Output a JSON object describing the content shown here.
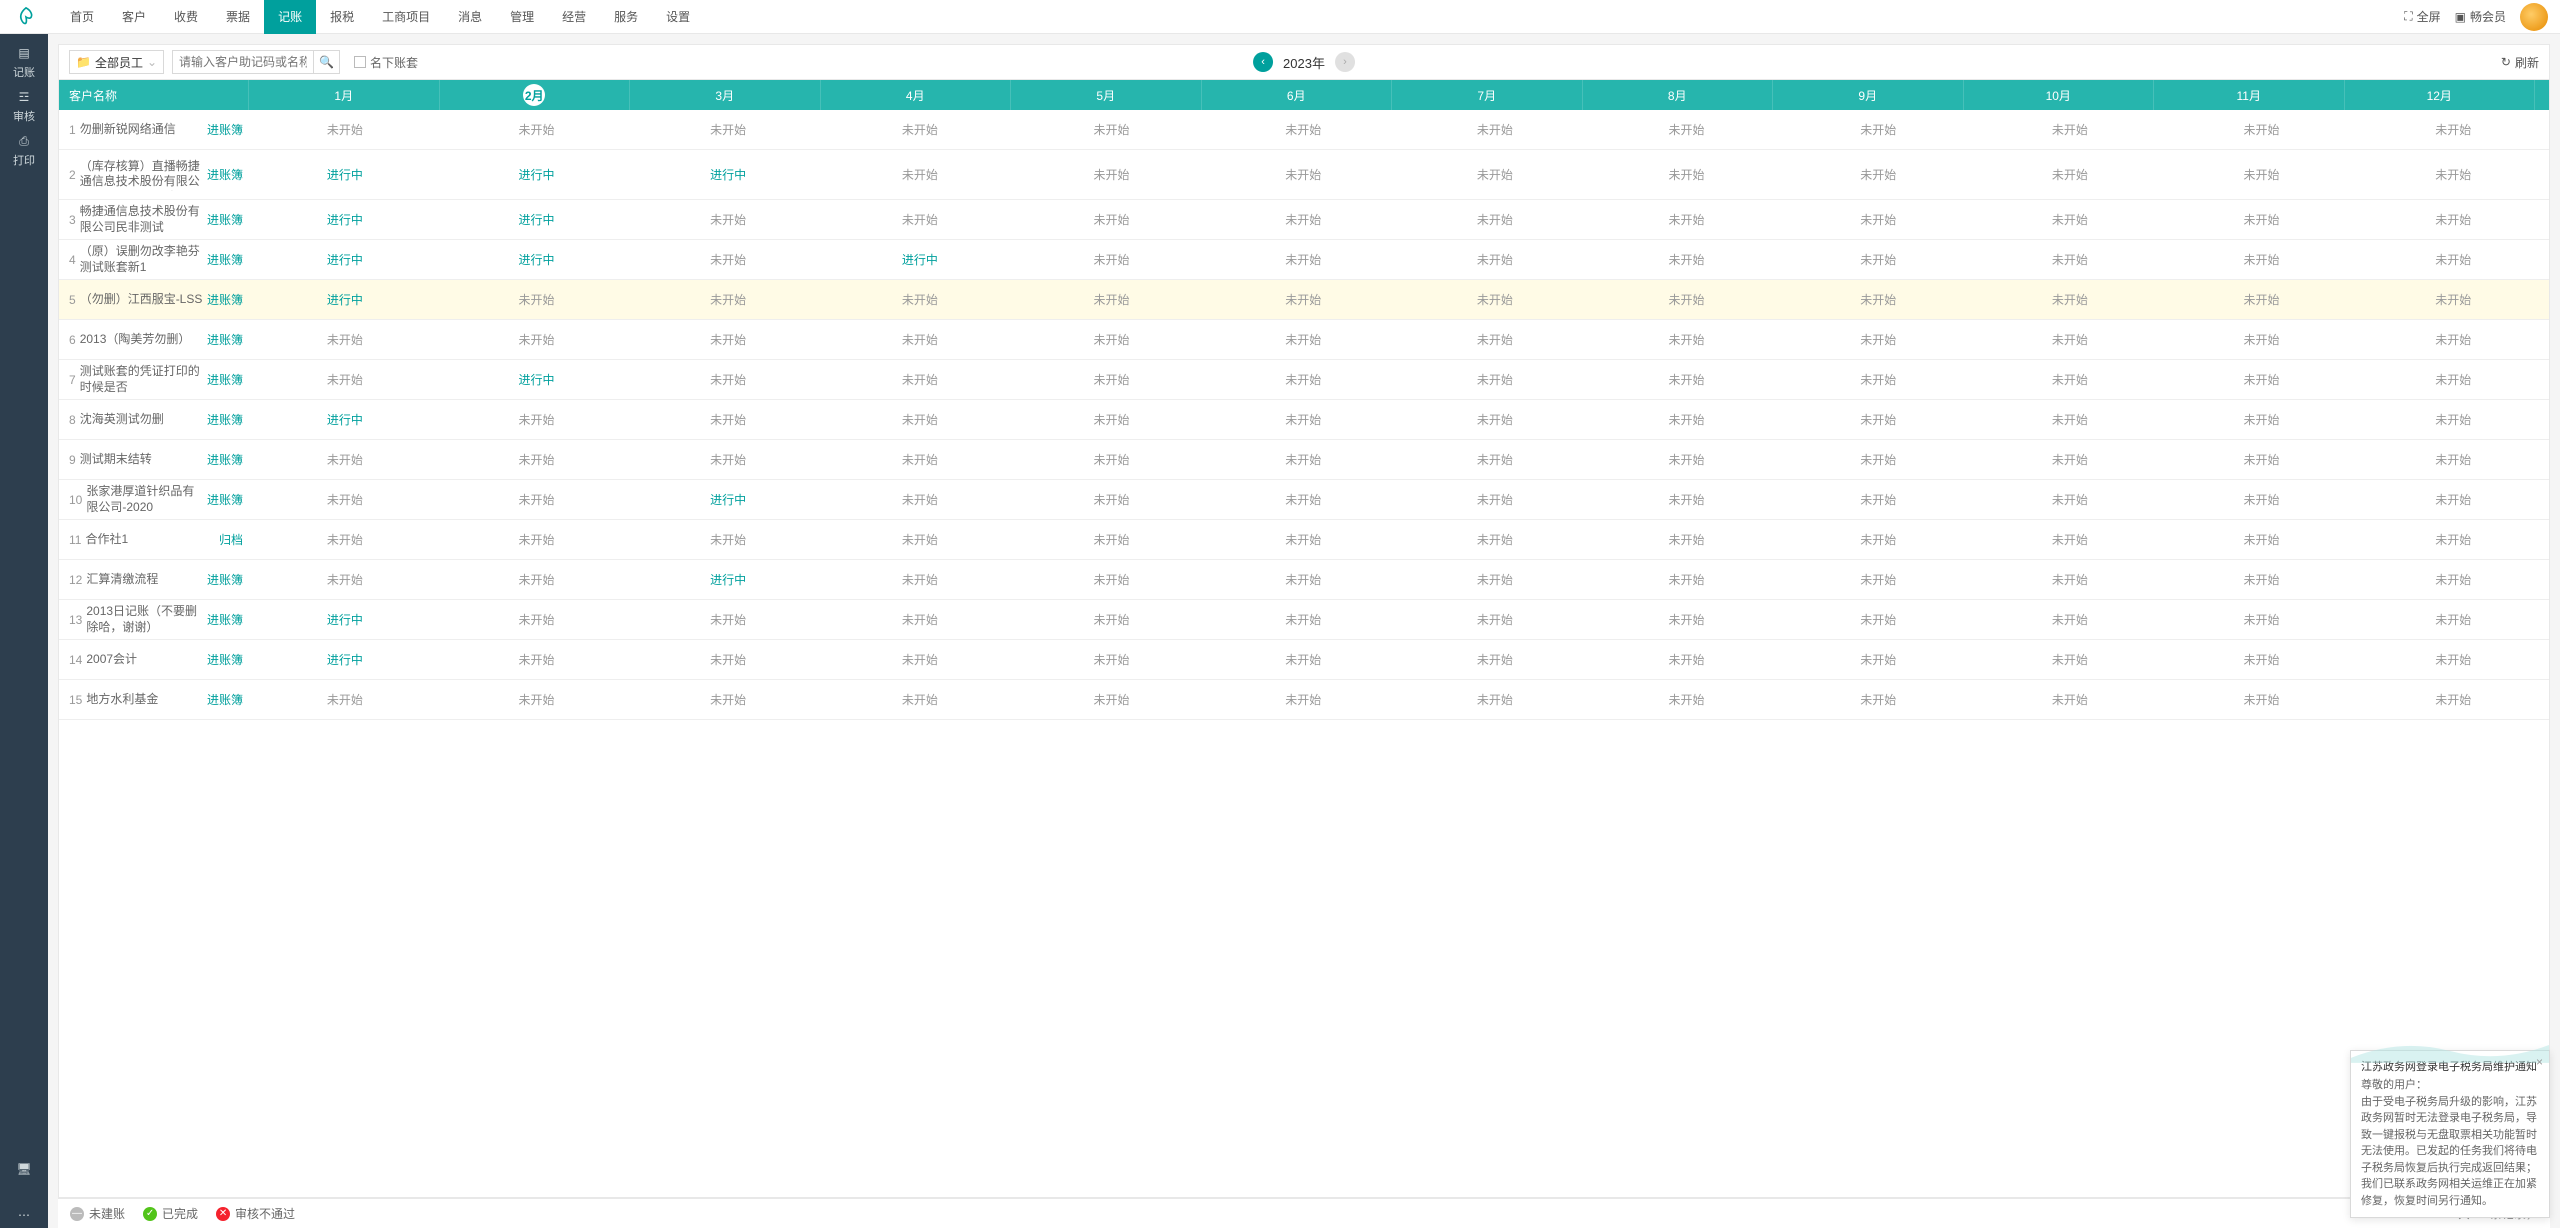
{
  "topnav": {
    "items": [
      "首页",
      "客户",
      "收费",
      "票据",
      "记账",
      "报税",
      "工商项目",
      "消息",
      "管理",
      "经营",
      "服务",
      "设置"
    ],
    "active_index": 4,
    "fullscreen": "全屏",
    "member": "畅会员"
  },
  "sidebar": {
    "items": [
      {
        "icon": "ledger",
        "label": "记账"
      },
      {
        "icon": "audit",
        "label": "审核"
      },
      {
        "icon": "print",
        "label": "打印"
      }
    ]
  },
  "filter": {
    "employee_select": "全部员工",
    "search_placeholder": "请输入客户助记码或名称",
    "sub_account": "名下账套",
    "year": "2023年",
    "refresh": "刷新"
  },
  "table": {
    "name_header": "客户名称",
    "months": [
      "1月",
      "2月",
      "3月",
      "4月",
      "5月",
      "6月",
      "7月",
      "8月",
      "9月",
      "10月",
      "11月",
      "12月"
    ],
    "current_month_index": 1,
    "ledger_link": "进账簿",
    "archive_link": "归档",
    "status_labels": {
      "notstart": "未开始",
      "progress": "进行中"
    },
    "rows": [
      {
        "idx": 1,
        "name": "勿删新锐网络通信",
        "link": "ledger",
        "cells": [
          "notstart",
          "notstart",
          "notstart",
          "notstart",
          "notstart",
          "notstart",
          "notstart",
          "notstart",
          "notstart",
          "notstart",
          "notstart",
          "notstart"
        ]
      },
      {
        "idx": 2,
        "name": "（库存核算）直播畅捷通信息技术股份有限公司chanjet（原账套）",
        "link": "ledger",
        "tall": true,
        "cells": [
          "progress",
          "progress",
          "progress",
          "notstart",
          "notstart",
          "notstart",
          "notstart",
          "notstart",
          "notstart",
          "notstart",
          "notstart",
          "notstart"
        ]
      },
      {
        "idx": 3,
        "name": "畅捷通信息技术股份有限公司民非测试",
        "link": "ledger",
        "cells": [
          "progress",
          "progress",
          "notstart",
          "notstart",
          "notstart",
          "notstart",
          "notstart",
          "notstart",
          "notstart",
          "notstart",
          "notstart",
          "notstart"
        ]
      },
      {
        "idx": 4,
        "name": "（原）误删勿改李艳芬测试账套新1",
        "link": "ledger",
        "cells": [
          "progress",
          "progress",
          "notstart",
          "progress",
          "notstart",
          "notstart",
          "notstart",
          "notstart",
          "notstart",
          "notstart",
          "notstart",
          "notstart"
        ]
      },
      {
        "idx": 5,
        "name": "（勿删）江西服宝-LSS",
        "link": "ledger",
        "hl": true,
        "cells": [
          "progress",
          "notstart",
          "notstart",
          "notstart",
          "notstart",
          "notstart",
          "notstart",
          "notstart",
          "notstart",
          "notstart",
          "notstart",
          "notstart"
        ]
      },
      {
        "idx": 6,
        "name": "2013（陶美芳勿删）",
        "link": "ledger",
        "cells": [
          "notstart",
          "notstart",
          "notstart",
          "notstart",
          "notstart",
          "notstart",
          "notstart",
          "notstart",
          "notstart",
          "notstart",
          "notstart",
          "notstart"
        ]
      },
      {
        "idx": 7,
        "name": "测试账套的凭证打印的时候是否",
        "link": "ledger",
        "cells": [
          "notstart",
          "progress",
          "notstart",
          "notstart",
          "notstart",
          "notstart",
          "notstart",
          "notstart",
          "notstart",
          "notstart",
          "notstart",
          "notstart"
        ]
      },
      {
        "idx": 8,
        "name": "沈海英测试勿删",
        "link": "ledger",
        "cells": [
          "progress",
          "notstart",
          "notstart",
          "notstart",
          "notstart",
          "notstart",
          "notstart",
          "notstart",
          "notstart",
          "notstart",
          "notstart",
          "notstart"
        ]
      },
      {
        "idx": 9,
        "name": "测试期末结转",
        "link": "ledger",
        "cells": [
          "notstart",
          "notstart",
          "notstart",
          "notstart",
          "notstart",
          "notstart",
          "notstart",
          "notstart",
          "notstart",
          "notstart",
          "notstart",
          "notstart"
        ]
      },
      {
        "idx": 10,
        "name": "张家港厚道针织品有限公司-2020",
        "link": "ledger",
        "cells": [
          "notstart",
          "notstart",
          "progress",
          "notstart",
          "notstart",
          "notstart",
          "notstart",
          "notstart",
          "notstart",
          "notstart",
          "notstart",
          "notstart"
        ]
      },
      {
        "idx": 11,
        "name": "合作社1",
        "link": "archive",
        "cells": [
          "notstart",
          "notstart",
          "notstart",
          "notstart",
          "notstart",
          "notstart",
          "notstart",
          "notstart",
          "notstart",
          "notstart",
          "notstart",
          "notstart"
        ]
      },
      {
        "idx": 12,
        "name": "汇算清缴流程",
        "link": "ledger",
        "cells": [
          "notstart",
          "notstart",
          "progress",
          "notstart",
          "notstart",
          "notstart",
          "notstart",
          "notstart",
          "notstart",
          "notstart",
          "notstart",
          "notstart"
        ]
      },
      {
        "idx": 13,
        "name": "2013日记账（不要删除哈，谢谢）",
        "link": "ledger",
        "cells": [
          "progress",
          "notstart",
          "notstart",
          "notstart",
          "notstart",
          "notstart",
          "notstart",
          "notstart",
          "notstart",
          "notstart",
          "notstart",
          "notstart"
        ]
      },
      {
        "idx": 14,
        "name": "2007会计",
        "link": "ledger",
        "cells": [
          "progress",
          "notstart",
          "notstart",
          "notstart",
          "notstart",
          "notstart",
          "notstart",
          "notstart",
          "notstart",
          "notstart",
          "notstart",
          "notstart"
        ]
      },
      {
        "idx": 15,
        "name": "地方水利基金",
        "link": "ledger",
        "cells": [
          "notstart",
          "notstart",
          "notstart",
          "notstart",
          "notstart",
          "notstart",
          "notstart",
          "notstart",
          "notstart",
          "notstart",
          "notstart",
          "notstart"
        ]
      }
    ]
  },
  "footer": {
    "legends": [
      {
        "color": "gray",
        "symbol": "—",
        "label": "未建账"
      },
      {
        "color": "green",
        "symbol": "✓",
        "label": "已完成"
      },
      {
        "color": "red",
        "symbol": "✕",
        "label": "审核不通过"
      }
    ],
    "summary": "共131条记录，"
  },
  "notification": {
    "title": "江苏政务网登录电子税务局维护通知",
    "body": "尊敬的用户：\n由于受电子税务局升级的影响，江苏政务网暂时无法登录电子税务局，导致一键报税与无盘取票相关功能暂时无法使用。已发起的任务我们将待电子税务局恢复后执行完成返回结果；我们已联系政务网相关运维正在加紧修复，恢复时间另行通知。"
  },
  "colors": {
    "teal": "#00a09d",
    "teal_header": "#26b5ad",
    "sidebar": "#2d3e4e",
    "highlight_row": "#fffbe6"
  }
}
